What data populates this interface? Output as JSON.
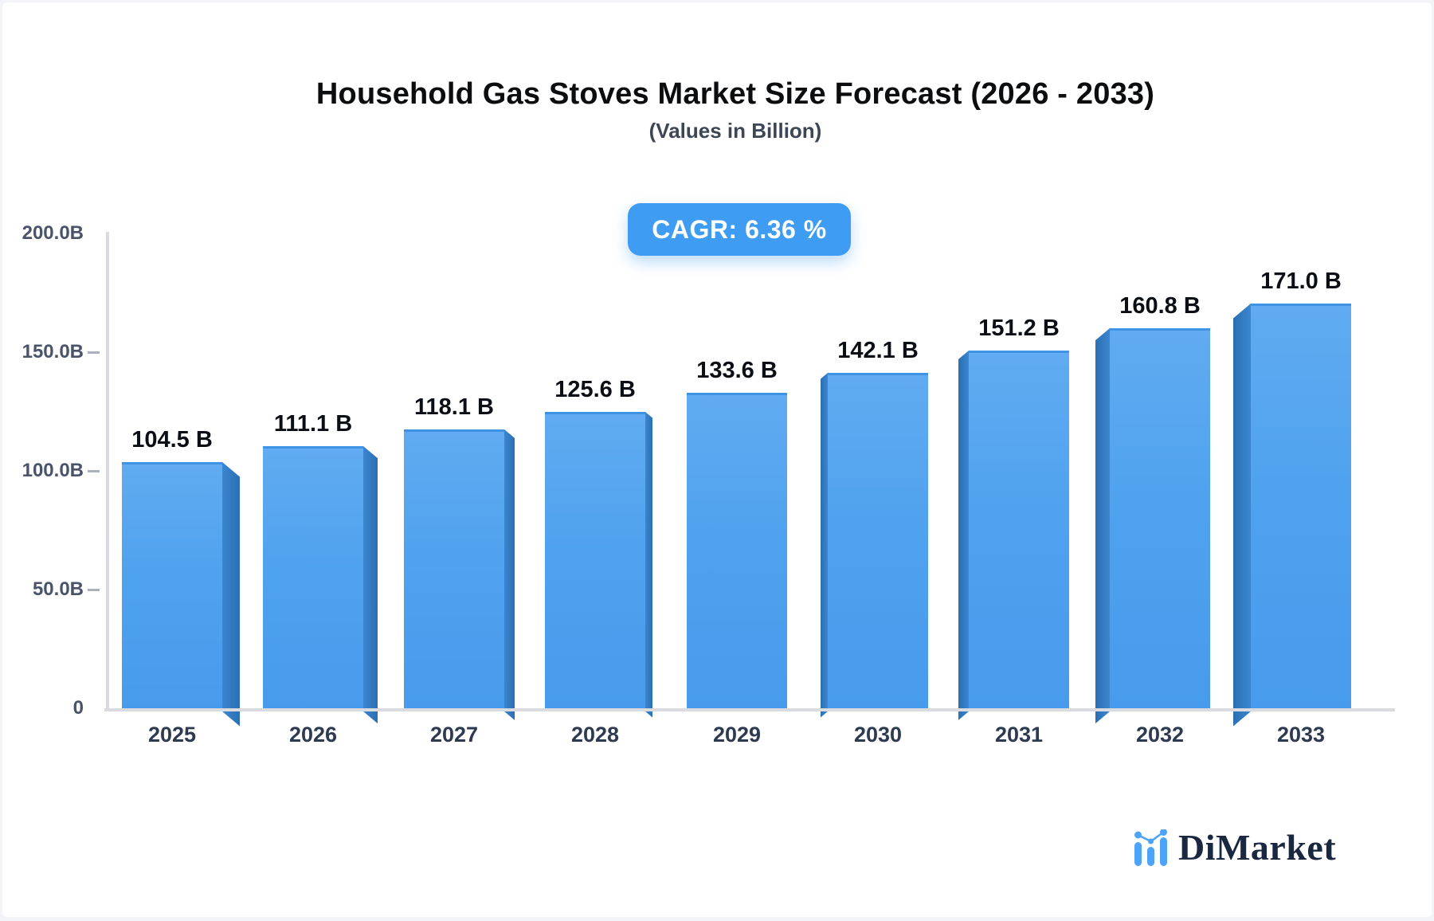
{
  "header": {
    "title": "Household Gas Stoves Market Size Forecast (2026 - 2033)",
    "subtitle": "(Values in Billion)"
  },
  "badge": {
    "label": "CAGR: 6.36 %",
    "background_color": "#3e9cf2",
    "text_color": "#ffffff"
  },
  "chart_data": {
    "type": "bar",
    "title": "Household Gas Stoves Market Size Forecast (2026 - 2033)",
    "subtitle": "(Values in Billion)",
    "xlabel": "",
    "ylabel": "",
    "categories": [
      "2025",
      "2026",
      "2027",
      "2028",
      "2029",
      "2030",
      "2031",
      "2032",
      "2033"
    ],
    "values": [
      104.5,
      111.1,
      118.1,
      125.6,
      133.6,
      142.1,
      151.2,
      160.8,
      171.0
    ],
    "value_labels": [
      "104.5 B",
      "111.1 B",
      "118.1 B",
      "125.6 B",
      "133.6 B",
      "142.1 B",
      "151.2 B",
      "160.8 B",
      "171.0 B"
    ],
    "cagr": "6.36 %",
    "ylim": [
      0,
      200
    ],
    "yticks": [
      {
        "label": "200.0B",
        "value": 200
      },
      {
        "label": "150.0B",
        "value": 150
      },
      {
        "label": "100.0B",
        "value": 100
      },
      {
        "label": "50.0B",
        "value": 50
      },
      {
        "label": "0",
        "value": 0
      }
    ],
    "grid": false,
    "legend": "none",
    "bar_color": "#4fa2ee",
    "bar_side_color": "#2d77be",
    "axis_color": "#d9dbe0"
  },
  "footer": {
    "brand": "DiMarket",
    "logo_icon": "bar-chart-logo-icon",
    "brand_color": "#1a2740",
    "icon_color": "#4da3f7"
  }
}
